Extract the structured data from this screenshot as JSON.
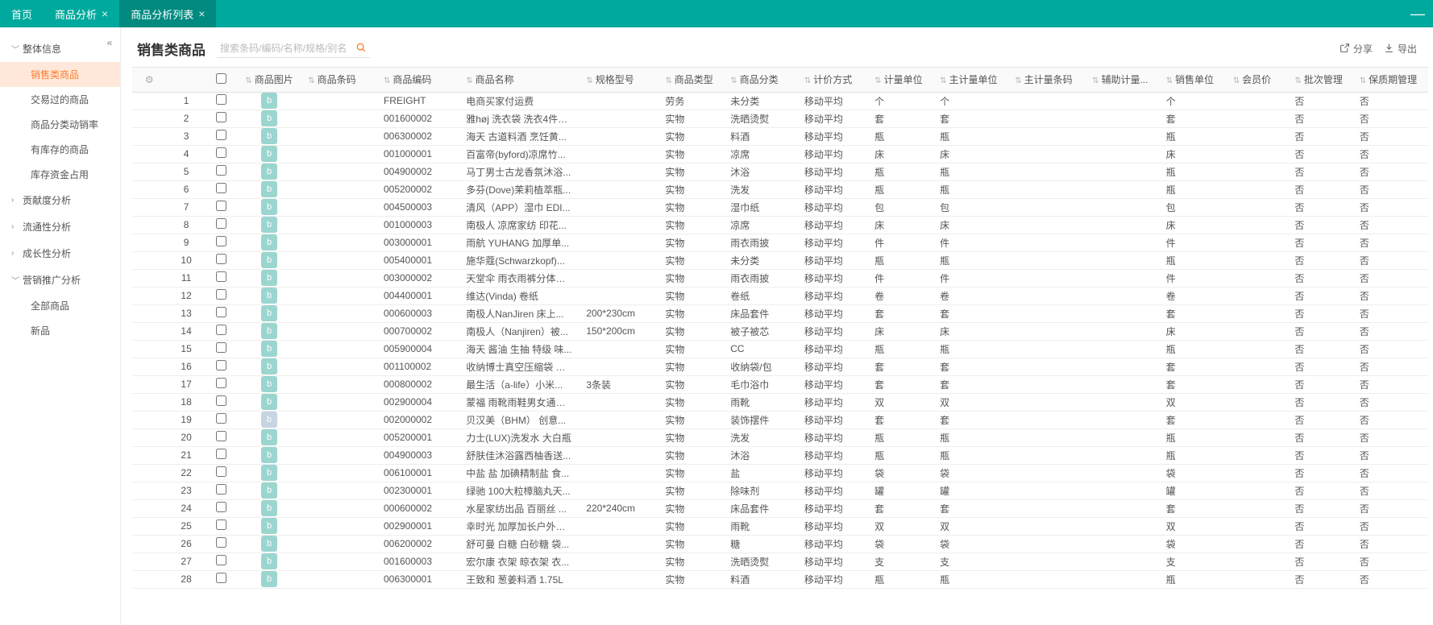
{
  "tabs": [
    {
      "label": "首页",
      "closable": false,
      "active": false
    },
    {
      "label": "商品分析",
      "closable": true,
      "active": false
    },
    {
      "label": "商品分析列表",
      "closable": true,
      "active": true
    }
  ],
  "sidebar": {
    "collapse_icon": "«",
    "groups": [
      {
        "label": "整体信息",
        "expanded": true,
        "children": [
          {
            "label": "销售类商品",
            "active": true
          },
          {
            "label": "交易过的商品"
          },
          {
            "label": "商品分类动销率"
          },
          {
            "label": "有库存的商品"
          },
          {
            "label": "库存资金占用"
          }
        ]
      },
      {
        "label": "贡献度分析",
        "expanded": false
      },
      {
        "label": "流通性分析",
        "expanded": false
      },
      {
        "label": "成长性分析",
        "expanded": false
      },
      {
        "label": "营销推广分析",
        "expanded": true,
        "children": [
          {
            "label": "全部商品"
          },
          {
            "label": "新品"
          }
        ]
      }
    ]
  },
  "page": {
    "title": "销售类商品",
    "search_placeholder": "搜索条码/编码/名称/规格/别名",
    "share_label": "分享",
    "export_label": "导出"
  },
  "columns": [
    {
      "key": "gear",
      "label": "⚙",
      "cls": "col-gear",
      "sortable": false
    },
    {
      "key": "seq",
      "label": "",
      "cls": "col-seq",
      "sortable": false
    },
    {
      "key": "cb",
      "label": "",
      "cls": "col-cb",
      "checkbox": true,
      "sortable": false
    },
    {
      "key": "img",
      "label": "商品图片",
      "cls": "col-img"
    },
    {
      "key": "barcode",
      "label": "商品条码",
      "cls": "col-barcode"
    },
    {
      "key": "code",
      "label": "商品编码",
      "cls": "col-code"
    },
    {
      "key": "name",
      "label": "商品名称",
      "cls": "col-name"
    },
    {
      "key": "spec",
      "label": "规格型号",
      "cls": "col-spec"
    },
    {
      "key": "type",
      "label": "商品类型",
      "cls": "col-type"
    },
    {
      "key": "cat",
      "label": "商品分类",
      "cls": "col-cat"
    },
    {
      "key": "price",
      "label": "计价方式",
      "cls": "col-price"
    },
    {
      "key": "unit",
      "label": "计量单位",
      "cls": "col-unit"
    },
    {
      "key": "mainunit",
      "label": "主计量单位",
      "cls": "col-mainunit"
    },
    {
      "key": "mainbar",
      "label": "主计量条码",
      "cls": "col-mainbar"
    },
    {
      "key": "auxunit",
      "label": "辅助计量...",
      "cls": "col-auxunit"
    },
    {
      "key": "saleunit",
      "label": "销售单位",
      "cls": "col-saleunit"
    },
    {
      "key": "member",
      "label": "会员价",
      "cls": "col-member"
    },
    {
      "key": "batch",
      "label": "批次管理",
      "cls": "col-batch"
    },
    {
      "key": "shelf",
      "label": "保质期管理",
      "cls": "col-shelf"
    }
  ],
  "rows": [
    {
      "code": "FREIGHT",
      "name": "电商买家付运费",
      "spec": "",
      "type": "劳务",
      "cat": "未分类",
      "price": "移动平均",
      "unit": "个",
      "mainunit": "个",
      "saleunit": "个",
      "batch": "否",
      "shelf": "否"
    },
    {
      "code": "001600002",
      "name": "雅høj 洗衣袋 洗衣4件套...",
      "spec": "",
      "type": "实物",
      "cat": "洗晒烫熨",
      "price": "移动平均",
      "unit": "套",
      "mainunit": "套",
      "saleunit": "套",
      "batch": "否",
      "shelf": "否"
    },
    {
      "code": "006300002",
      "name": "海天 古道料酒 烹饪黄...",
      "spec": "",
      "type": "实物",
      "cat": "料酒",
      "price": "移动平均",
      "unit": "瓶",
      "mainunit": "瓶",
      "saleunit": "瓶",
      "batch": "否",
      "shelf": "否"
    },
    {
      "code": "001000001",
      "name": "百富帝(byford)凉席竹...",
      "spec": "",
      "type": "实物",
      "cat": "凉席",
      "price": "移动平均",
      "unit": "床",
      "mainunit": "床",
      "saleunit": "床",
      "batch": "否",
      "shelf": "否"
    },
    {
      "code": "004900002",
      "name": "马丁男士古龙香氛沐浴...",
      "spec": "",
      "type": "实物",
      "cat": "沐浴",
      "price": "移动平均",
      "unit": "瓶",
      "mainunit": "瓶",
      "saleunit": "瓶",
      "batch": "否",
      "shelf": "否"
    },
    {
      "code": "005200002",
      "name": "多芬(Dove)茉莉植萃瓶...",
      "spec": "",
      "type": "实物",
      "cat": "洗发",
      "price": "移动平均",
      "unit": "瓶",
      "mainunit": "瓶",
      "saleunit": "瓶",
      "batch": "否",
      "shelf": "否"
    },
    {
      "code": "004500003",
      "name": "清风（APP）湿巾 EDI...",
      "spec": "",
      "type": "实物",
      "cat": "湿巾纸",
      "price": "移动平均",
      "unit": "包",
      "mainunit": "包",
      "saleunit": "包",
      "batch": "否",
      "shelf": "否"
    },
    {
      "code": "001000003",
      "name": "南极人 凉席家纺 印花...",
      "spec": "",
      "type": "实物",
      "cat": "凉席",
      "price": "移动平均",
      "unit": "床",
      "mainunit": "床",
      "saleunit": "床",
      "batch": "否",
      "shelf": "否"
    },
    {
      "code": "003000001",
      "name": "雨航 YUHANG 加厚单...",
      "spec": "",
      "type": "实物",
      "cat": "雨衣雨披",
      "price": "移动平均",
      "unit": "件",
      "mainunit": "件",
      "saleunit": "件",
      "batch": "否",
      "shelf": "否"
    },
    {
      "code": "005400001",
      "name": "施华蔻(Schwarzkopf)...",
      "spec": "",
      "type": "实物",
      "cat": "未分类",
      "price": "移动平均",
      "unit": "瓶",
      "mainunit": "瓶",
      "saleunit": "瓶",
      "batch": "否",
      "shelf": "否"
    },
    {
      "code": "003000002",
      "name": "天堂伞 雨衣雨裤分体套...",
      "spec": "",
      "type": "实物",
      "cat": "雨衣雨披",
      "price": "移动平均",
      "unit": "件",
      "mainunit": "件",
      "saleunit": "件",
      "batch": "否",
      "shelf": "否"
    },
    {
      "code": "004400001",
      "name": "维达(Vinda) 卷纸",
      "spec": "",
      "type": "实物",
      "cat": "卷纸",
      "price": "移动平均",
      "unit": "卷",
      "mainunit": "卷",
      "saleunit": "卷",
      "batch": "否",
      "shelf": "否"
    },
    {
      "code": "000600003",
      "name": "南极人NanJiren 床上...",
      "spec": "200*230cm",
      "type": "实物",
      "cat": "床品套件",
      "price": "移动平均",
      "unit": "套",
      "mainunit": "套",
      "saleunit": "套",
      "batch": "否",
      "shelf": "否"
    },
    {
      "code": "000700002",
      "name": "南极人（Nanjiren）被...",
      "spec": "150*200cm",
      "type": "实物",
      "cat": "被子被芯",
      "price": "移动平均",
      "unit": "床",
      "mainunit": "床",
      "saleunit": "床",
      "batch": "否",
      "shelf": "否"
    },
    {
      "code": "005900004",
      "name": "海天 酱油 生抽 特级 味...",
      "spec": "",
      "type": "实物",
      "cat": "CC",
      "price": "移动平均",
      "unit": "瓶",
      "mainunit": "瓶",
      "saleunit": "瓶",
      "batch": "否",
      "shelf": "否"
    },
    {
      "code": "001100002",
      "name": "收纳博士真空压缩袋 收...",
      "spec": "",
      "type": "实物",
      "cat": "收纳袋/包",
      "price": "移动平均",
      "unit": "套",
      "mainunit": "套",
      "saleunit": "套",
      "batch": "否",
      "shelf": "否"
    },
    {
      "code": "000800002",
      "name": "最生活（a-life）小米...",
      "spec": "3条装",
      "type": "实物",
      "cat": "毛巾浴巾",
      "price": "移动平均",
      "unit": "套",
      "mainunit": "套",
      "saleunit": "套",
      "batch": "否",
      "shelf": "否"
    },
    {
      "code": "002900004",
      "name": "蒙福 雨靴雨鞋男女通用...",
      "spec": "",
      "type": "实物",
      "cat": "雨靴",
      "price": "移动平均",
      "unit": "双",
      "mainunit": "双",
      "saleunit": "双",
      "batch": "否",
      "shelf": "否"
    },
    {
      "code": "002000002",
      "name": "贝汉美（BHM） 创意...",
      "spec": "",
      "type": "实物",
      "cat": "装饰摆件",
      "price": "移动平均",
      "unit": "套",
      "mainunit": "套",
      "saleunit": "套",
      "batch": "否",
      "shelf": "否",
      "img_grey": true
    },
    {
      "code": "005200001",
      "name": "力士(LUX)洗发水 大白瓶",
      "spec": "",
      "type": "实物",
      "cat": "洗发",
      "price": "移动平均",
      "unit": "瓶",
      "mainunit": "瓶",
      "saleunit": "瓶",
      "batch": "否",
      "shelf": "否"
    },
    {
      "code": "004900003",
      "name": "舒肤佳沐浴露西柚香送...",
      "spec": "",
      "type": "实物",
      "cat": "沐浴",
      "price": "移动平均",
      "unit": "瓶",
      "mainunit": "瓶",
      "saleunit": "瓶",
      "batch": "否",
      "shelf": "否"
    },
    {
      "code": "006100001",
      "name": "中盐 盐 加碘精制盐 食...",
      "spec": "",
      "type": "实物",
      "cat": "盐",
      "price": "移动平均",
      "unit": "袋",
      "mainunit": "袋",
      "saleunit": "袋",
      "batch": "否",
      "shelf": "否"
    },
    {
      "code": "002300001",
      "name": "绿驰 100大粒樟脑丸天...",
      "spec": "",
      "type": "实物",
      "cat": "除味剂",
      "price": "移动平均",
      "unit": "罐",
      "mainunit": "罐",
      "saleunit": "罐",
      "batch": "否",
      "shelf": "否"
    },
    {
      "code": "000600002",
      "name": "水星家纺出品 百丽丝 ...",
      "spec": "220*240cm",
      "type": "实物",
      "cat": "床品套件",
      "price": "移动平均",
      "unit": "套",
      "mainunit": "套",
      "saleunit": "套",
      "batch": "否",
      "shelf": "否"
    },
    {
      "code": "002900001",
      "name": "幸时光 加厚加长户外一...",
      "spec": "",
      "type": "实物",
      "cat": "雨靴",
      "price": "移动平均",
      "unit": "双",
      "mainunit": "双",
      "saleunit": "双",
      "batch": "否",
      "shelf": "否"
    },
    {
      "code": "006200002",
      "name": "舒可曼 白糖 白砂糖 袋...",
      "spec": "",
      "type": "实物",
      "cat": "糖",
      "price": "移动平均",
      "unit": "袋",
      "mainunit": "袋",
      "saleunit": "袋",
      "batch": "否",
      "shelf": "否"
    },
    {
      "code": "001600003",
      "name": "宏尔康 衣架 晾衣架 衣...",
      "spec": "",
      "type": "实物",
      "cat": "洗晒烫熨",
      "price": "移动平均",
      "unit": "支",
      "mainunit": "支",
      "saleunit": "支",
      "batch": "否",
      "shelf": "否"
    },
    {
      "code": "006300001",
      "name": "王致和 葱姜料酒 1.75L",
      "spec": "",
      "type": "实物",
      "cat": "料酒",
      "price": "移动平均",
      "unit": "瓶",
      "mainunit": "瓶",
      "saleunit": "瓶",
      "batch": "否",
      "shelf": "否"
    }
  ]
}
